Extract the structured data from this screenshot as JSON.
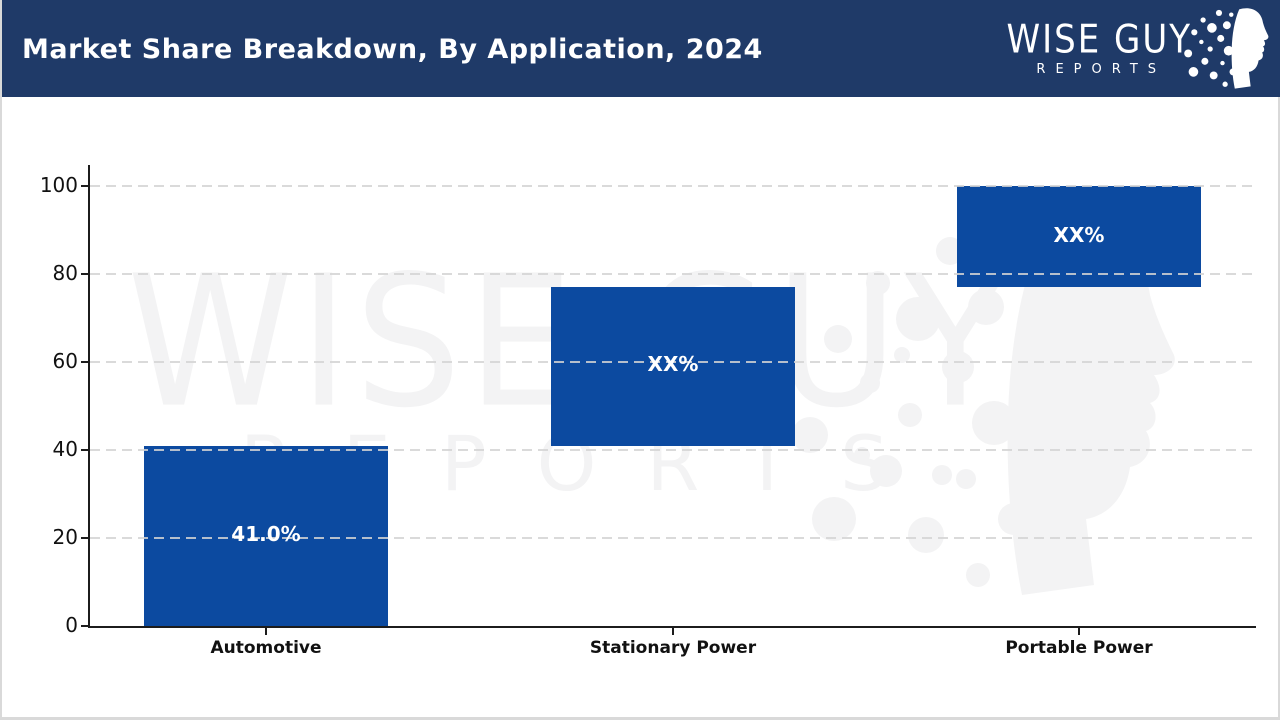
{
  "header": {
    "title": "Market Share Breakdown, By Application, 2024",
    "bg_color": "#1f3a68",
    "logo": {
      "line1": "WISE GUY",
      "line2": "REPORTS"
    }
  },
  "watermark": {
    "line1": "WISE GUY",
    "line2": "REPORTS"
  },
  "chart_data": {
    "type": "bar",
    "variant": "floating-segment-waterfall",
    "title": "Market Share Breakdown, By Application, 2024",
    "categories": [
      "Automotive",
      "Stationary Power",
      "Portable Power"
    ],
    "bars": [
      {
        "category": "Automotive",
        "start": 0,
        "end": 41,
        "label": "41.0%"
      },
      {
        "category": "Stationary Power",
        "start": 41,
        "end": 77,
        "label": "XX%"
      },
      {
        "category": "Portable Power",
        "start": 77,
        "end": 100,
        "label": "XX%"
      }
    ],
    "yticks": [
      0,
      20,
      40,
      60,
      80,
      100
    ],
    "ylim": [
      0,
      105
    ],
    "xlabel": "",
    "ylabel": "",
    "grid": "dashed horizontal, drawn above bars",
    "legend": "none",
    "bar_color": "#0c4aa0",
    "bar_label_color": "#ffffff",
    "axis_color": "#1c1c1c",
    "grid_color": "#d4d4d4"
  }
}
